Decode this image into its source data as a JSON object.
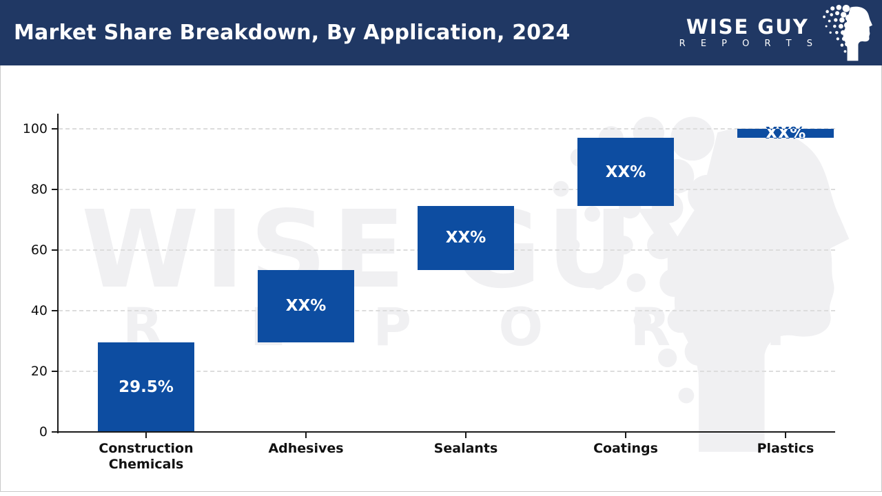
{
  "header": {
    "title": "Market Share Breakdown, By Application, 2024",
    "bg_color": "#203864",
    "logo": {
      "line1": "WISE GUY",
      "line2": "R E P O R T S",
      "face_icon": "dotted-face-profile"
    }
  },
  "watermark": {
    "line1": "WISE GUY",
    "line2": "R E P O R T S",
    "face_icon": "dotted-face-profile"
  },
  "chart_data": {
    "type": "bar",
    "subtype": "waterfall",
    "title": "Market Share Breakdown, By Application, 2024",
    "categories": [
      "Construction Chemicals",
      "Adhesives",
      "Sealants",
      "Coatings",
      "Plastics"
    ],
    "series": [
      {
        "name": "Market Share",
        "segments": [
          {
            "category": "Construction Chemicals",
            "start": 0,
            "end": 29.5,
            "label": "29.5%"
          },
          {
            "category": "Adhesives",
            "start": 29.5,
            "end": 53.5,
            "label": "XX%"
          },
          {
            "category": "Sealants",
            "start": 53.5,
            "end": 74.5,
            "label": "XX%"
          },
          {
            "category": "Coatings",
            "start": 74.5,
            "end": 97,
            "label": "XX%"
          },
          {
            "category": "Plastics",
            "start": 97,
            "end": 100,
            "label": "XX%"
          }
        ]
      }
    ],
    "xlabel": "",
    "ylabel": "",
    "ylim": [
      0,
      100
    ],
    "yticks": [
      0,
      20,
      40,
      60,
      80,
      100
    ],
    "grid": "horizontal-dashed",
    "legend": "none",
    "bar_color": "#0d4da1",
    "bar_label_color": "#ffffff",
    "gridline_color": "#dcdcdc"
  }
}
